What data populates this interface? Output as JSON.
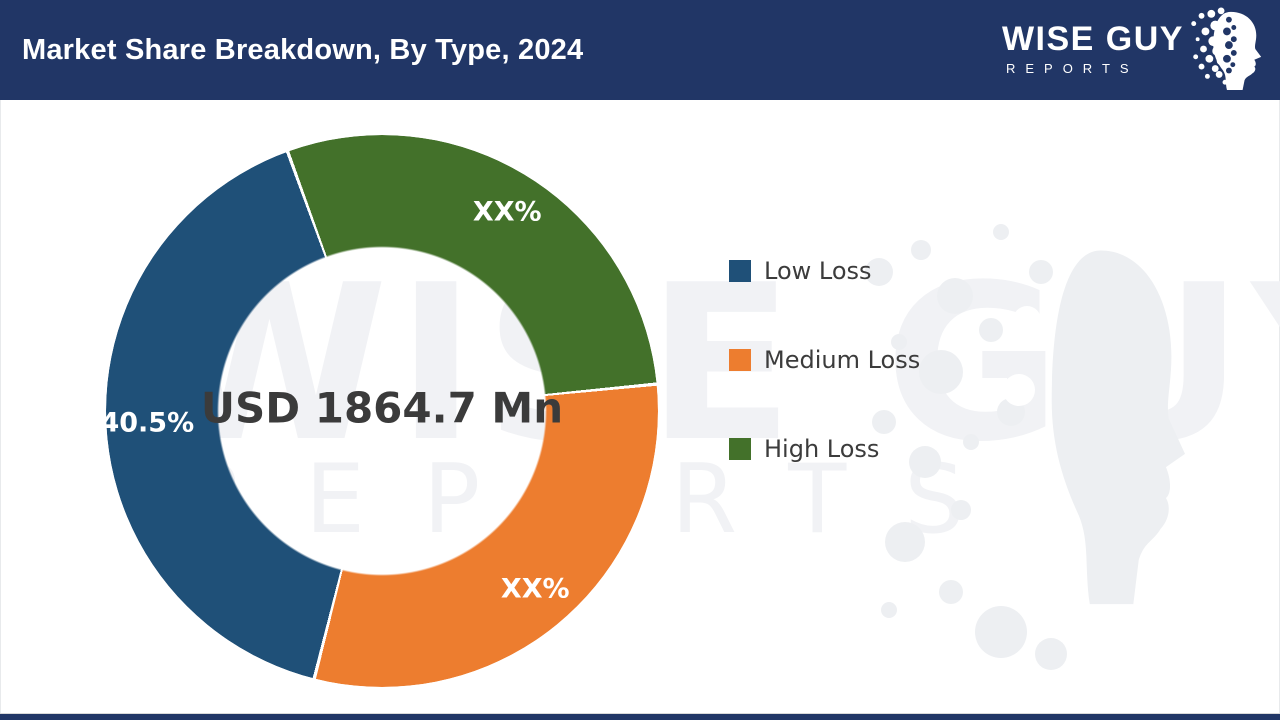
{
  "header": {
    "title": "Market Share Breakdown, By Type, 2024",
    "logo": {
      "line1": "WISE GUY",
      "line2": "REPORTS"
    }
  },
  "watermark": {
    "line1": "WISE GUY",
    "line2": "REPORTS"
  },
  "chart_data": {
    "type": "pie",
    "subtype": "donut",
    "title": "Market Share Breakdown, By Type, 2024",
    "center_label": "USD 1864.7 Mn",
    "donut_hole_ratio": 0.59,
    "start_angle_deg_clockwise_from_top": -20,
    "draw_order_clockwise_from_top": [
      "High Loss",
      "Medium Loss",
      "Low Loss"
    ],
    "legend_position": "right",
    "segments": [
      {
        "name": "Low Loss",
        "display_label": "40.5%",
        "value_pct_est": 40.5,
        "color": "#1F5078"
      },
      {
        "name": "Medium Loss",
        "display_label": "XX%",
        "value_pct_est": 30.5,
        "color": "#ED7D2F"
      },
      {
        "name": "High Loss",
        "display_label": "XX%",
        "value_pct_est": 29.0,
        "color": "#43712A"
      }
    ],
    "colors": {
      "header_bar": "#213666",
      "separator": "#FFFFFF",
      "center_text": "#3B3B3B",
      "legend_text": "#3C3C3C"
    }
  }
}
